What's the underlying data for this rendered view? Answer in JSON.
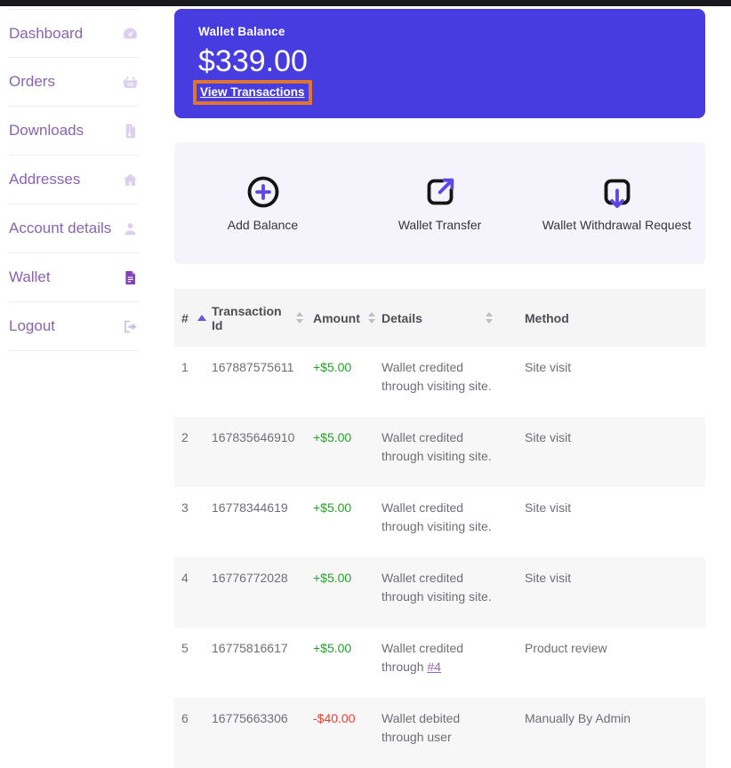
{
  "sidebar": {
    "items": [
      {
        "label": "Dashboard",
        "icon": "dashboard-icon",
        "active": false
      },
      {
        "label": "Orders",
        "icon": "orders-icon",
        "active": false
      },
      {
        "label": "Downloads",
        "icon": "downloads-icon",
        "active": false
      },
      {
        "label": "Addresses",
        "icon": "addresses-icon",
        "active": false
      },
      {
        "label": "Account details",
        "icon": "account-icon",
        "active": false
      },
      {
        "label": "Wallet",
        "icon": "wallet-icon",
        "active": true
      },
      {
        "label": "Logout",
        "icon": "logout-icon",
        "active": false
      }
    ]
  },
  "balance_card": {
    "title": "Wallet Balance",
    "amount": "$339.00",
    "link_label": "View Transactions"
  },
  "actions": [
    {
      "label": "Add Balance",
      "icon": "add-balance-icon"
    },
    {
      "label": "Wallet Transfer",
      "icon": "wallet-transfer-icon"
    },
    {
      "label": "Wallet Withdrawal Request",
      "icon": "wallet-withdrawal-icon"
    }
  ],
  "table": {
    "columns": [
      {
        "label": "#",
        "sort": "asc"
      },
      {
        "label": "Transaction Id",
        "sort": "both"
      },
      {
        "label": "Amount",
        "sort": "both"
      },
      {
        "label": "Details",
        "sort": "both"
      },
      {
        "label": "Method",
        "sort": "none"
      }
    ],
    "rows": [
      {
        "num": "1",
        "transaction_id": "167887575611",
        "amount": "+$5.00",
        "amount_type": "credit",
        "details": "Wallet credited through visiting site.",
        "method": "Site visit"
      },
      {
        "num": "2",
        "transaction_id": "167835646910",
        "amount": "+$5.00",
        "amount_type": "credit",
        "details": "Wallet credited through visiting site.",
        "method": "Site visit"
      },
      {
        "num": "3",
        "transaction_id": "16778344619",
        "amount": "+$5.00",
        "amount_type": "credit",
        "details": "Wallet credited through visiting site.",
        "method": "Site visit"
      },
      {
        "num": "4",
        "transaction_id": "16776772028",
        "amount": "+$5.00",
        "amount_type": "credit",
        "details": "Wallet credited through visiting site.",
        "method": "Site visit"
      },
      {
        "num": "5",
        "transaction_id": "16775816617",
        "amount": "+$5.00",
        "amount_type": "credit",
        "details": "Wallet credited through ",
        "details_link": "#4",
        "method": "Product review"
      },
      {
        "num": "6",
        "transaction_id": "16775663306",
        "amount": "-$40.00",
        "amount_type": "debit",
        "details": "Wallet debited through user",
        "method": "Manually By Admin"
      }
    ]
  },
  "colors": {
    "accent": "#473ce0",
    "annotation": "#e2752c",
    "credit": "#23a326",
    "debit": "#f43b30",
    "sidebar_text": "#8a63b3"
  }
}
